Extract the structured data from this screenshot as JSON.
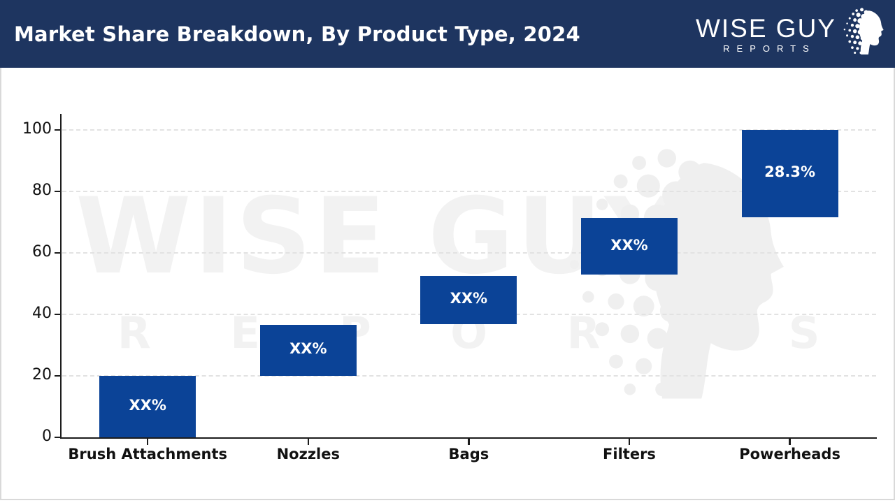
{
  "header": {
    "title": "Market Share Breakdown, By Product Type, 2024",
    "logo": {
      "line1": "WISE GUY",
      "line2": "REPORTS"
    },
    "background_color": "#1e3560",
    "text_color": "#ffffff"
  },
  "watermark": {
    "line1": "WISE GUY",
    "line2": "R E P O R T S"
  },
  "chart_data": {
    "type": "bar",
    "subtype": "waterfall",
    "title": "Market Share Breakdown, By Product Type, 2024",
    "categories": [
      "Brush Attachments",
      "Nozzles",
      "Bags",
      "Filters",
      "Powerheads"
    ],
    "segments": [
      {
        "category": "Brush Attachments",
        "start": 0,
        "end": 20,
        "label": "XX%"
      },
      {
        "category": "Nozzles",
        "start": 20,
        "end": 36.6,
        "label": "XX%"
      },
      {
        "category": "Bags",
        "start": 36.9,
        "end": 52.5,
        "label": "XX%"
      },
      {
        "category": "Filters",
        "start": 52.9,
        "end": 71.4,
        "label": "XX%"
      },
      {
        "category": "Powerheads",
        "start": 71.7,
        "end": 100,
        "label": "28.3%"
      }
    ],
    "y_ticks": [
      0,
      20,
      40,
      60,
      80,
      100
    ],
    "ylim": [
      0,
      100
    ],
    "xlabel": "",
    "ylabel": "",
    "grid": "horizontal-dashed",
    "legend": "none",
    "bar_color": "#0b4397",
    "bar_label_color": "#ffffff",
    "axis_color": "#1c1c1c"
  }
}
